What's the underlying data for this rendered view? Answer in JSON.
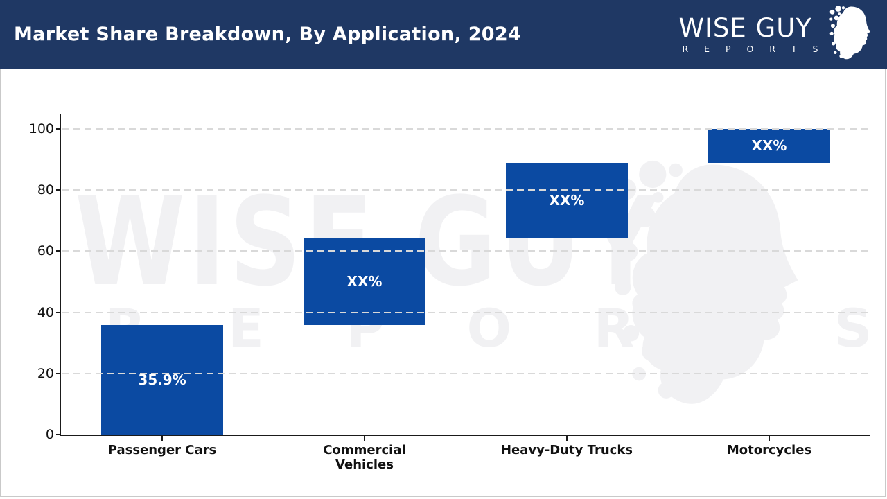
{
  "header": {
    "title": "Market Share Breakdown, By Application, 2024",
    "logo": {
      "wordmark": "WISE GUY",
      "subtext": "R E P O R T S"
    }
  },
  "watermark": {
    "line1": "WISE GUY",
    "line2": "R E P O R T S"
  },
  "colors": {
    "header_bg": "#1f3864",
    "title_text": "#ffffff",
    "bar": "#0b4aa2",
    "bar_label": "#ffffff",
    "grid": "#d9d9d9",
    "axis": "#1a1a1a",
    "tick_text": "#111111",
    "wm": "#f1f1f3",
    "frame": "#c9c9c9"
  },
  "chart_data": {
    "type": "bar",
    "variant": "floating-segment-waterfall",
    "title": "Market Share Breakdown, By Application, 2024",
    "categories": [
      "Passenger Cars",
      "Commercial Vehicles",
      "Heavy-Duty Trucks",
      "Motorcycles"
    ],
    "categories_display": [
      "Passenger Cars",
      "Commercial\nVehicles",
      "Heavy-Duty Trucks",
      "Motorcycles"
    ],
    "segments": [
      {
        "category": "Passenger Cars",
        "start": 0,
        "end": 35.9,
        "value": 35.9,
        "label": "35.9%"
      },
      {
        "category": "Commercial Vehicles",
        "start": 35.9,
        "end": 64.5,
        "value": 28.6,
        "label": "XX%"
      },
      {
        "category": "Heavy-Duty Trucks",
        "start": 64.5,
        "end": 88.9,
        "value": 24.4,
        "label": "XX%"
      },
      {
        "category": "Motorcycles",
        "start": 88.9,
        "end": 100.0,
        "value": 11.1,
        "label": "XX%"
      }
    ],
    "ylabel": "",
    "xlabel": "",
    "yticks": [
      0,
      20,
      40,
      60,
      80,
      100
    ],
    "ylim": [
      0,
      104.7
    ],
    "grid": "horizontal dashed, drawn over bars",
    "legend": "none",
    "bar_value_labels": [
      "35.9%",
      "XX%",
      "XX%",
      "XX%"
    ]
  }
}
